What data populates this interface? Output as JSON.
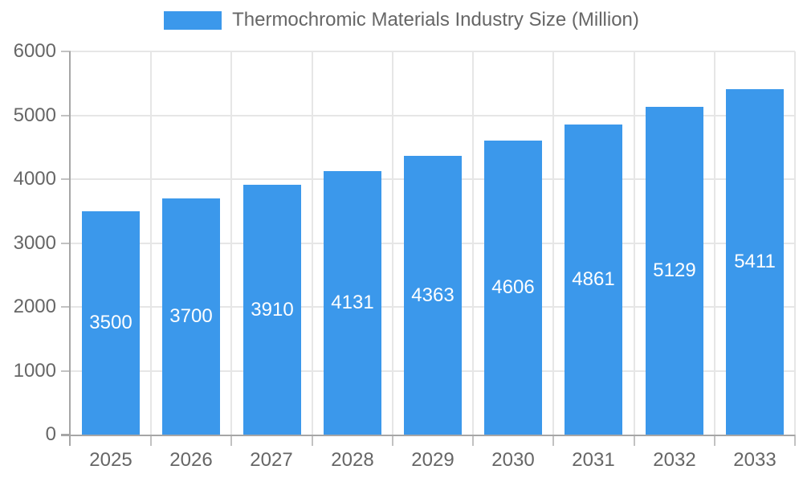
{
  "chart_data": {
    "type": "bar",
    "title": "Thermochromic Materials Industry Size (Million)",
    "legend_position": "top",
    "categories": [
      "2025",
      "2026",
      "2027",
      "2028",
      "2029",
      "2030",
      "2031",
      "2032",
      "2033"
    ],
    "values": [
      3500,
      3700,
      3910,
      4131,
      4363,
      4606,
      4861,
      5129,
      5411
    ],
    "xlabel": "",
    "ylabel": "",
    "ylim": [
      0,
      6000
    ],
    "y_ticks": [
      0,
      1000,
      2000,
      3000,
      4000,
      5000,
      6000
    ],
    "grid": true,
    "value_labels_inside_bars": true
  },
  "colors": {
    "bar": "#3b98eb",
    "grid": "#e6e6e6",
    "tick": "#c2c2c2",
    "axis": "#a6a6a6",
    "tick_text": "#666666",
    "legend_text": "#666666",
    "value_text": "#ffffff",
    "background": "#ffffff"
  }
}
